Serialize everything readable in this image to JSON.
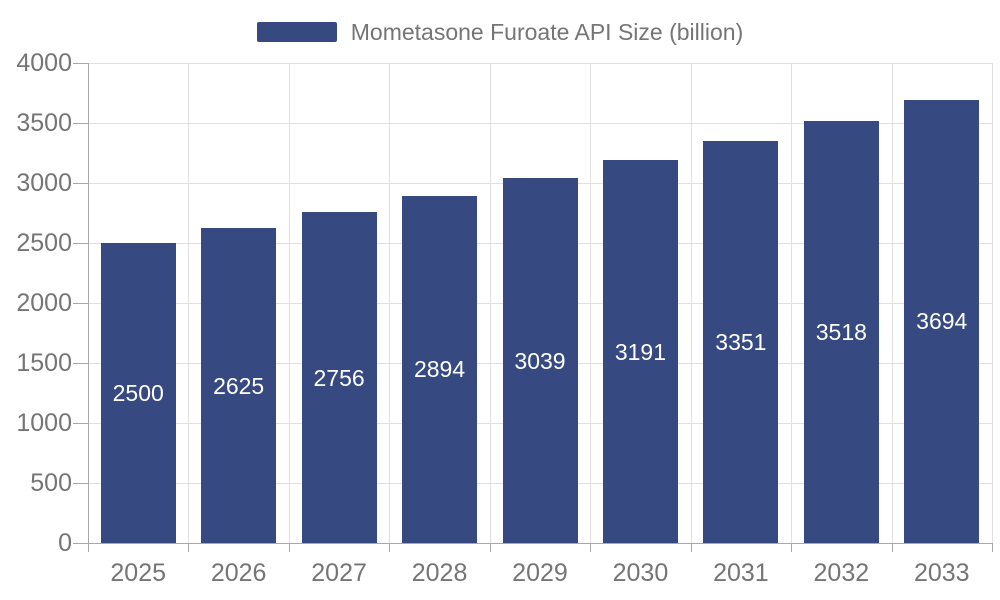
{
  "chart_data": {
    "type": "bar",
    "title": "",
    "legend": [
      "Mometasone Furoate API Size (billion)"
    ],
    "categories": [
      "2025",
      "2026",
      "2027",
      "2028",
      "2029",
      "2030",
      "2031",
      "2032",
      "2033"
    ],
    "values": [
      2500,
      2625,
      2756,
      2894,
      3039,
      3191,
      3351,
      3518,
      3694
    ],
    "xlabel": "",
    "ylabel": "",
    "ylim": [
      0,
      4000
    ],
    "yticks": [
      0,
      500,
      1000,
      1500,
      2000,
      2500,
      3000,
      3500,
      4000
    ],
    "grid": true,
    "legend_position": "top-center",
    "bar_labels_inside": true,
    "colors": {
      "bar": "#364A81",
      "bar_label": "#FFFFFF",
      "axis_text": "#757575",
      "axis_line": "#A8A8A8",
      "gridline": "#E0E0E0",
      "background": "#FFFFFF"
    }
  }
}
